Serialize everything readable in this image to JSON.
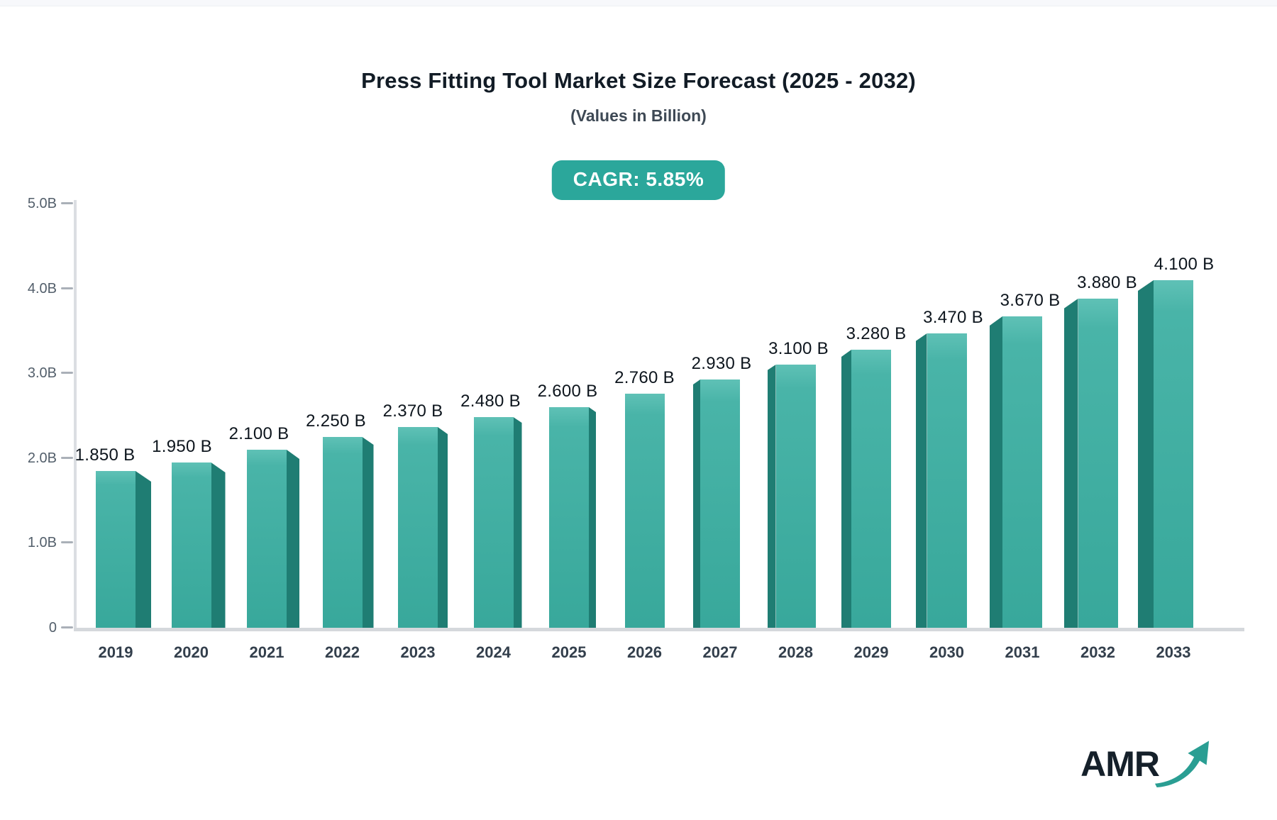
{
  "header": {
    "title": "Press Fitting Tool Market Size Forecast (2025 - 2032)",
    "subtitle": "(Values in Billion)",
    "cagr_label": "CAGR: 5.85%"
  },
  "chart_data": {
    "type": "bar",
    "title": "Press Fitting Tool Market Size Forecast (2025 - 2032)",
    "subtitle": "(Values in Billion)",
    "unit": "Billion",
    "cagr": "5.85%",
    "categories": [
      "2019",
      "2020",
      "2021",
      "2022",
      "2023",
      "2024",
      "2025",
      "2026",
      "2027",
      "2028",
      "2029",
      "2030",
      "2031",
      "2032",
      "2033"
    ],
    "values": [
      1.85,
      1.95,
      2.1,
      2.25,
      2.37,
      2.48,
      2.6,
      2.76,
      2.93,
      3.1,
      3.28,
      3.47,
      3.67,
      3.88,
      4.1
    ],
    "value_labels": [
      "1.850 B",
      "1.950 B",
      "2.100 B",
      "2.250 B",
      "2.370 B",
      "2.480 B",
      "2.600 B",
      "2.760 B",
      "2.930 B",
      "3.100 B",
      "3.280 B",
      "3.470 B",
      "3.670 B",
      "3.880 B",
      "4.100 B"
    ],
    "xlabel": "",
    "ylabel": "",
    "ylim": [
      0,
      5
    ],
    "ytick_labels": [
      "5.0B",
      "4.0B",
      "3.0B",
      "2.0B",
      "1.0B",
      "0"
    ],
    "ytick_values": [
      5,
      4,
      3,
      2,
      1,
      0
    ],
    "grid": false,
    "legend": "none",
    "bar_style": "3d-perspective"
  },
  "branding": {
    "logo_text": "AMR",
    "arrow_icon": "growth-arrow-icon"
  },
  "colors": {
    "accent_badge": "#2BA79B",
    "bar_face": "#3FAFA3",
    "bar_face_light": "#5FC1B6",
    "bar_side": "#1F7D73",
    "axis_line": "#D7DADE",
    "title_text": "#121C26",
    "axis_text": "#535F6B",
    "year_text": "#333F4C",
    "value_text": "#0D151D",
    "logo_text": "#15202A",
    "logo_arrow": "#2A9E93"
  }
}
